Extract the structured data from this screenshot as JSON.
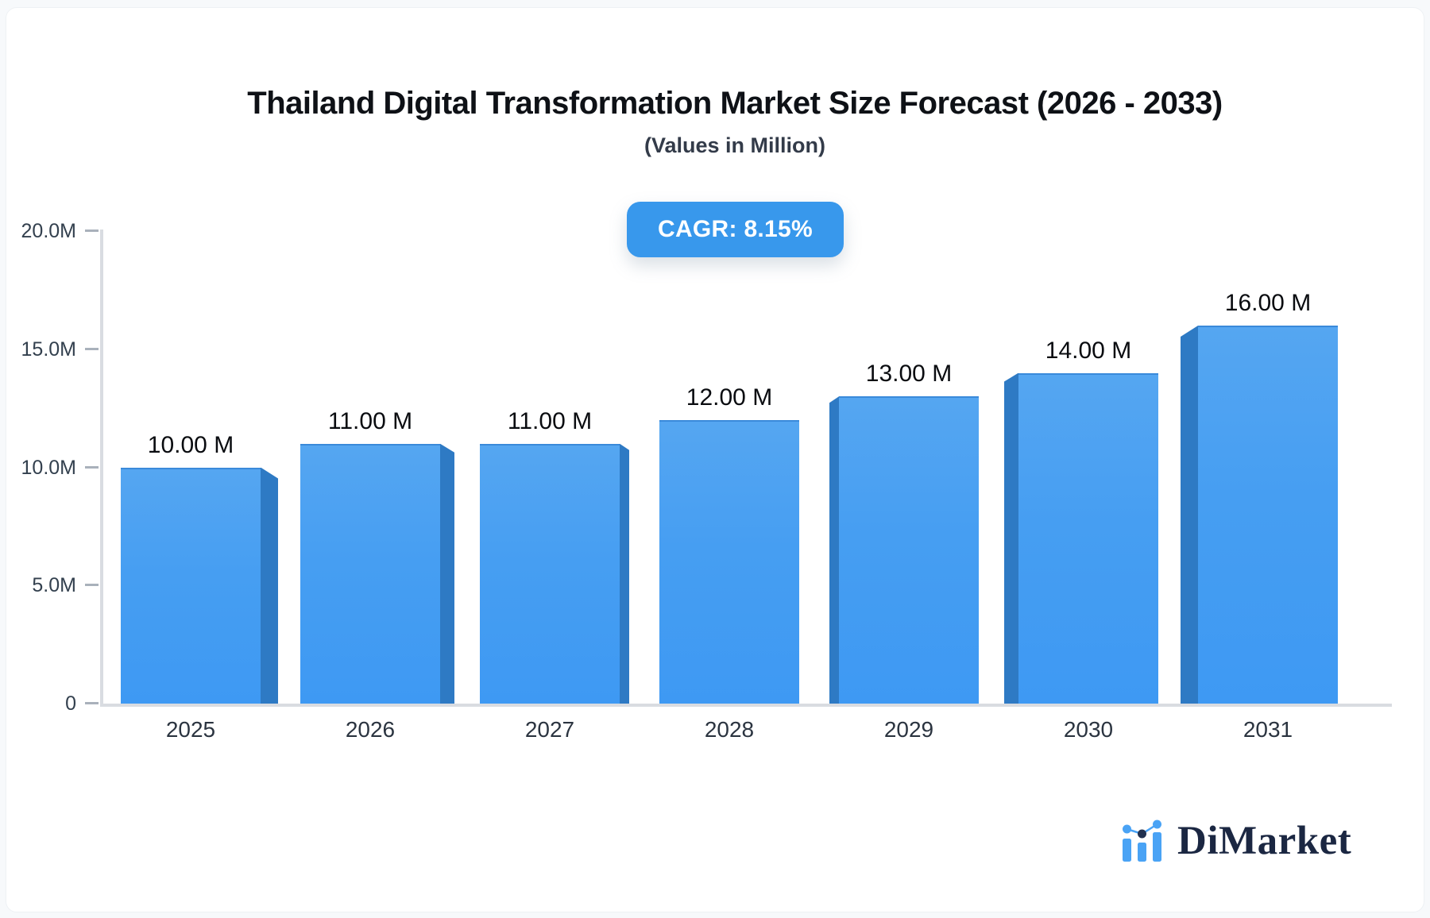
{
  "header": {
    "title": "Thailand Digital Transformation Market Size Forecast (2026 - 2033)",
    "subtitle": "(Values in Million)",
    "cagr_badge": "CAGR: 8.15%"
  },
  "chart_data": {
    "type": "bar",
    "title": "Thailand Digital Transformation Market Size Forecast (2026 - 2033)",
    "subtitle": "(Values in Million)",
    "cagr": "8.15%",
    "unit": "Million",
    "categories": [
      "2025",
      "2026",
      "2027",
      "2028",
      "2029",
      "2030",
      "2031"
    ],
    "values": [
      10,
      11,
      11,
      12,
      13,
      14,
      16
    ],
    "value_labels": [
      "10.00 M",
      "11.00 M",
      "11.00 M",
      "12.00 M",
      "13.00 M",
      "14.00 M",
      "16.00 M"
    ],
    "xlabel": "",
    "ylabel": "",
    "ylim": [
      0,
      20
    ],
    "y_ticks": {
      "labels": [
        "20.0M",
        "15.0M",
        "10.0M",
        "5.0M",
        "0"
      ],
      "values": [
        20,
        15,
        10,
        5,
        0
      ]
    },
    "grid": false,
    "legend": "none",
    "bar_color_top": "#55a6f1",
    "bar_color_bottom": "#3e99f3",
    "bar_side_color": "#2e7ac4"
  },
  "colors": {
    "badge_bg": "#3898ec",
    "axis_line": "#d9dce1",
    "tick": "#a9b1bb",
    "logo_navy": "#1b2742",
    "logo_blue": "#4aa3f5"
  },
  "logo": {
    "text": "DiMarket"
  }
}
